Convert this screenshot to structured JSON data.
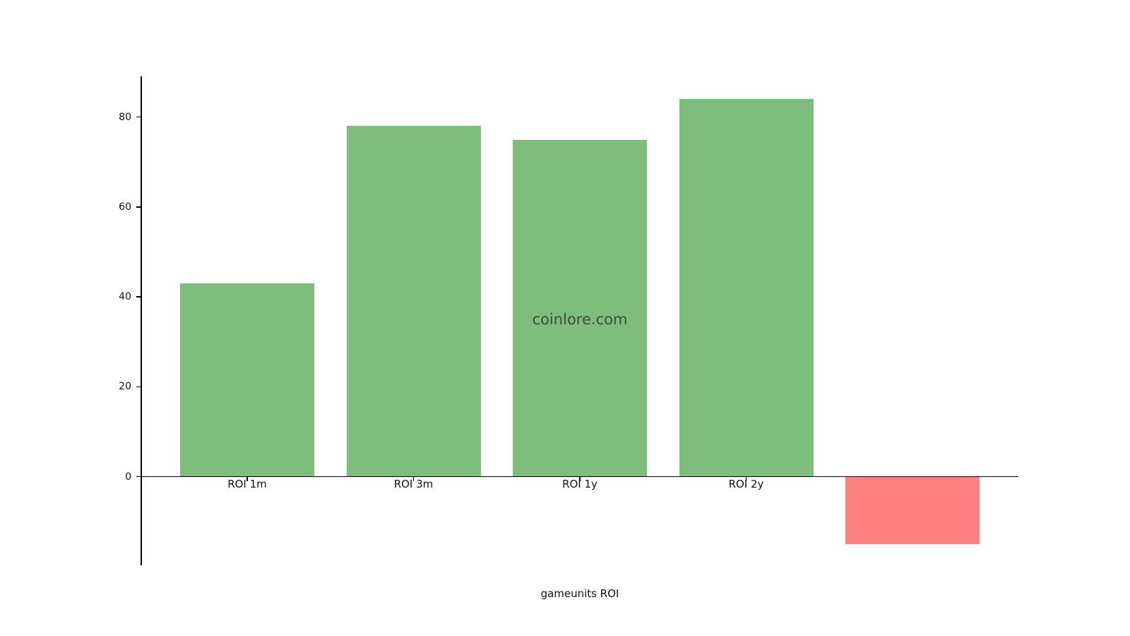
{
  "watermark": "coinlore.com",
  "chart_data": {
    "type": "bar",
    "title": "gameunits ROI",
    "xlabel": "",
    "ylabel": "",
    "categories": [
      "ROI 1m",
      "ROI 3m",
      "ROI 1y",
      "ROI 2y",
      ""
    ],
    "values": [
      43,
      78,
      75,
      84,
      -15
    ],
    "yticks": [
      0,
      20,
      40,
      60,
      80
    ],
    "ylim": [
      -20,
      89
    ],
    "grid": false,
    "legend": null,
    "baseline": 0,
    "colors": {
      "positive": "#7dbe7d",
      "negative": "#ff8080",
      "axis": "#000000",
      "text": "#111111",
      "watermark": "#3e4e3e",
      "background": "#ffffff"
    }
  }
}
